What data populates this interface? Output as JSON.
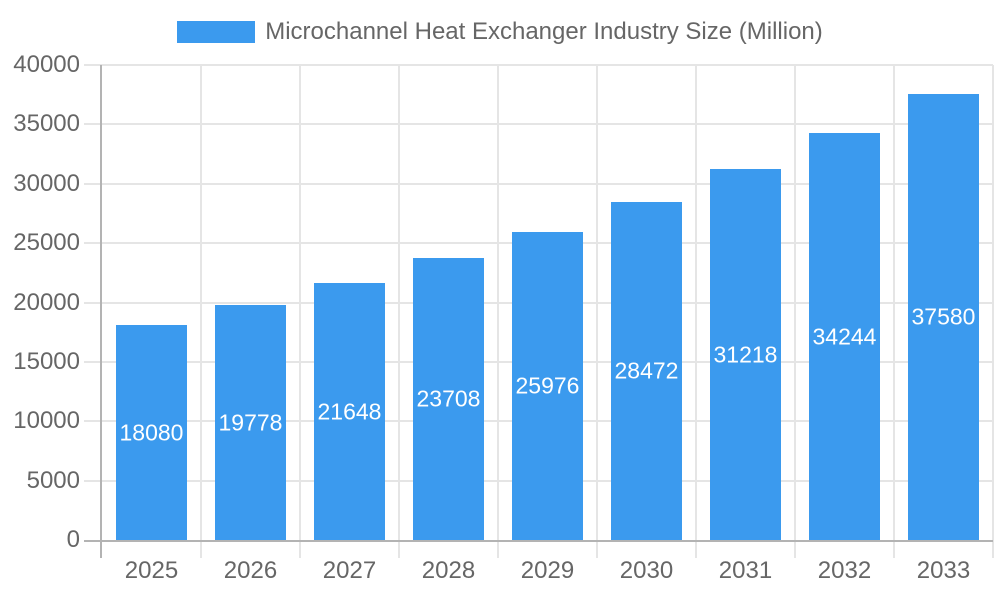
{
  "chart_data": {
    "type": "bar",
    "title": "Microchannel Heat Exchanger Industry Size (Million)",
    "legend_position": "top",
    "categories": [
      "2025",
      "2026",
      "2027",
      "2028",
      "2029",
      "2030",
      "2031",
      "2032",
      "2033"
    ],
    "series": [
      {
        "name": "Microchannel Heat Exchanger Industry Size (Million)",
        "values": [
          18080,
          19778,
          21648,
          23708,
          25976,
          28472,
          31218,
          34244,
          37580
        ]
      }
    ],
    "xlabel": "",
    "ylabel": "",
    "ylim": [
      0,
      40000
    ],
    "ytick_interval": 5000,
    "yticks": [
      0,
      5000,
      10000,
      15000,
      20000,
      25000,
      30000,
      35000,
      40000
    ],
    "grid": true,
    "bar_labels_inside": true,
    "colors": {
      "bar": "#3b9aee",
      "bar_label": "#ffffff",
      "grid": "#e5e5e5",
      "axis": "#b3b3b3",
      "tick_label": "#666666",
      "background": "#ffffff"
    }
  }
}
